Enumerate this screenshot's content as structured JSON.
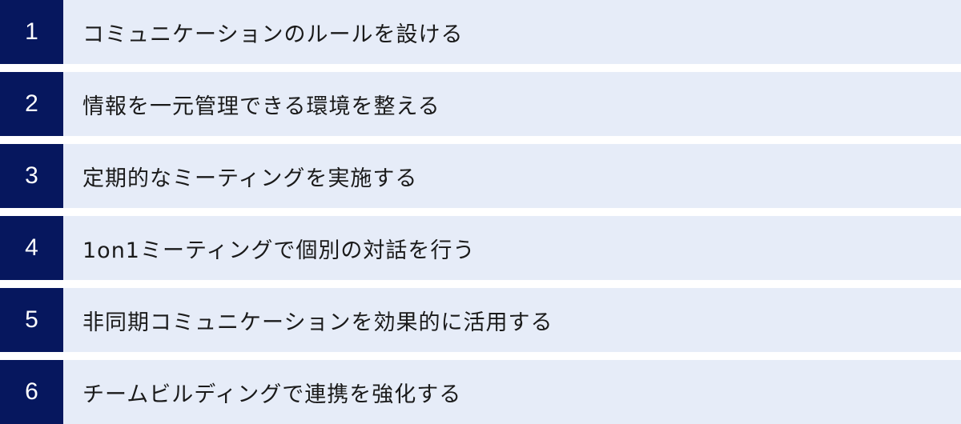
{
  "colors": {
    "number_bg": "#06175e",
    "row_bg": "#e6ecf8",
    "number_text": "#ffffff",
    "label_text": "#1a1a1a"
  },
  "items": [
    {
      "number": "1",
      "label": "コミュニケーションのルールを設ける"
    },
    {
      "number": "2",
      "label": "情報を一元管理できる環境を整える"
    },
    {
      "number": "3",
      "label": "定期的なミーティングを実施する"
    },
    {
      "number": "4",
      "label": "1on1ミーティングで個別の対話を行う"
    },
    {
      "number": "5",
      "label": "非同期コミュニケーションを効果的に活用する"
    },
    {
      "number": "6",
      "label": "チームビルディングで連携を強化する"
    }
  ]
}
